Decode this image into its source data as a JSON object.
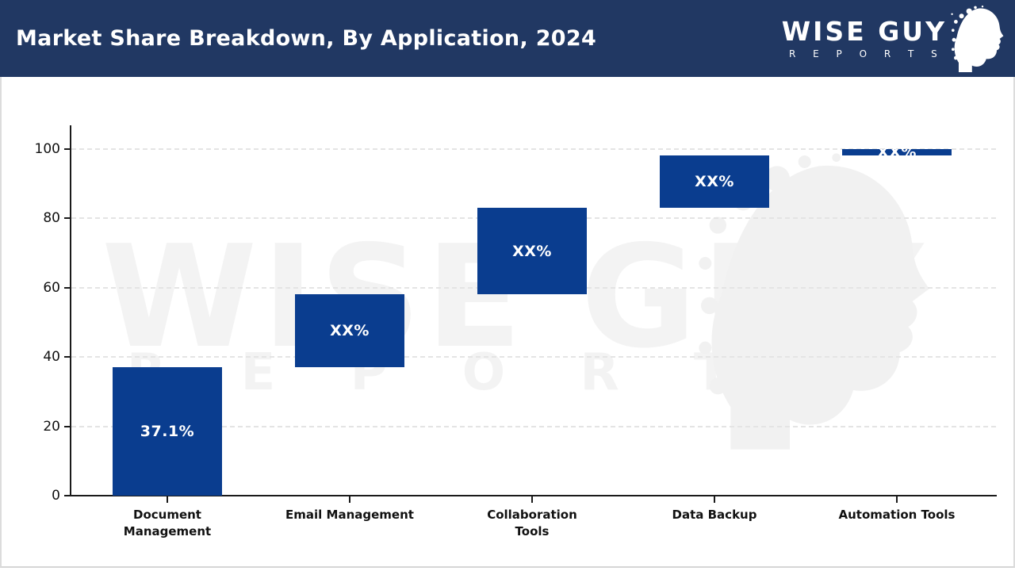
{
  "header": {
    "title": "Market Share Breakdown, By Application, 2024",
    "logo": {
      "line1": "WISE GUY",
      "line2": "R E P O R T S"
    }
  },
  "watermark": {
    "line1": "WISE GUY",
    "line2": "R E P O R T S"
  },
  "chart_data": {
    "type": "bar",
    "subtype": "waterfall",
    "title": "Market Share Breakdown, By Application, 2024",
    "categories": [
      "Document\nManagement",
      "Email Management",
      "Collaboration\nTools",
      "Data Backup",
      "Automation Tools"
    ],
    "series": [
      {
        "name": "Document Management",
        "start": 0,
        "end": 37.1,
        "label": "37.1%"
      },
      {
        "name": "Email Management",
        "start": 37.1,
        "end": 58,
        "label": "XX%"
      },
      {
        "name": "Collaboration Tools",
        "start": 58,
        "end": 83,
        "label": "XX%"
      },
      {
        "name": "Data Backup",
        "start": 83,
        "end": 98,
        "label": "XX%"
      },
      {
        "name": "Automation Tools",
        "start": 98,
        "end": 100,
        "label": "XX%"
      }
    ],
    "yticks": [
      0,
      20,
      40,
      60,
      80,
      100
    ],
    "ylim": [
      0,
      106
    ],
    "grid": "horizontal-dashed",
    "legend": "none",
    "xlabel": "",
    "ylabel": "",
    "bar_color": "#0a3d8f",
    "bar_label_color": "#ffffff"
  },
  "colors": {
    "header_bg": "#213863",
    "header_text": "#ffffff",
    "axis": "#1a1a1a",
    "grid": "#e4e4e4",
    "watermark": "#f3f3f3",
    "panel_border": "#d9d9d9"
  }
}
